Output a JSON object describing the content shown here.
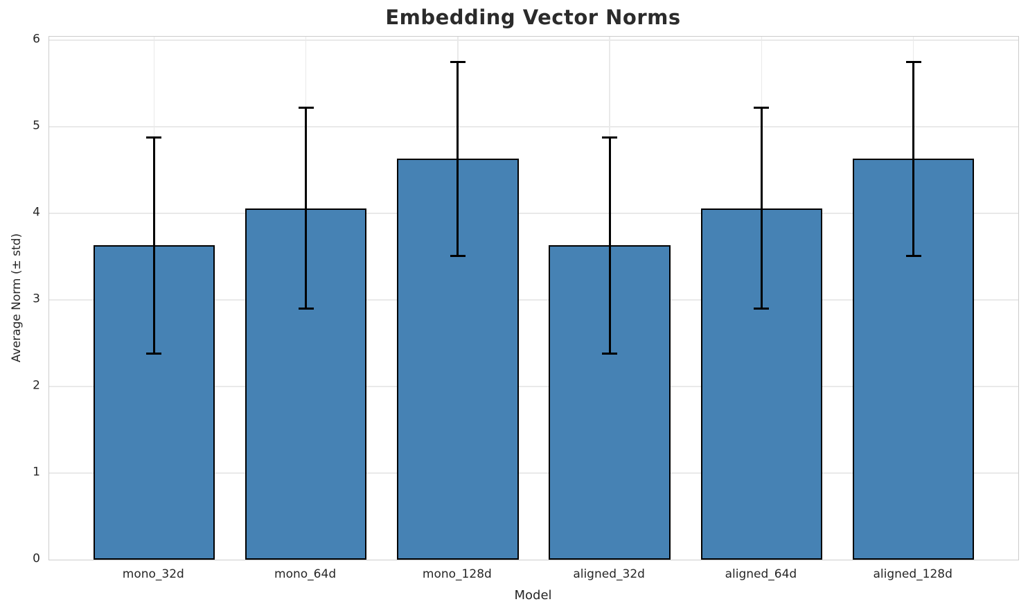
{
  "chart_data": {
    "type": "bar",
    "title": "Embedding Vector Norms",
    "xlabel": "Model",
    "ylabel": "Average Norm (± std)",
    "categories": [
      "mono_32d",
      "mono_64d",
      "mono_128d",
      "aligned_32d",
      "aligned_64d",
      "aligned_128d"
    ],
    "values": [
      3.63,
      4.06,
      4.63,
      3.63,
      4.06,
      4.63
    ],
    "std": [
      1.25,
      1.16,
      1.12,
      1.25,
      1.16,
      1.12
    ],
    "ylim": [
      0,
      6
    ],
    "yticks": [
      0,
      1,
      2,
      3,
      4,
      5,
      6
    ],
    "bar_width": 0.8,
    "grid": true,
    "legend_position": "none",
    "colors": {
      "bar_fill": "#4682b4",
      "bar_edge": "#000000",
      "error_bar": "#000000",
      "grid_line": "#e9e9e9",
      "spine": "#cccccc",
      "text": "#262626",
      "background": "#ffffff"
    }
  }
}
